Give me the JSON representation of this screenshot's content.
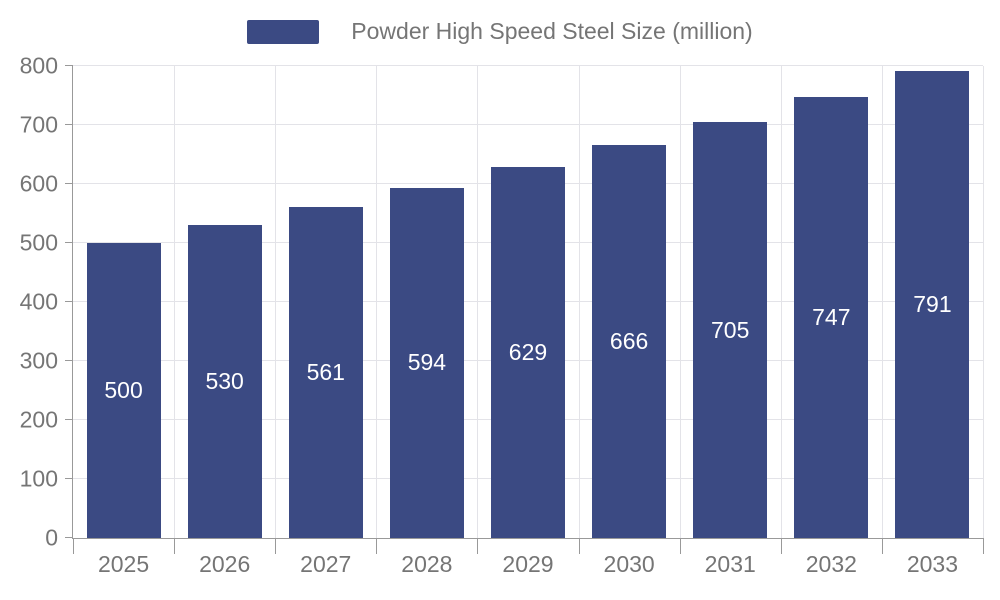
{
  "legend": {
    "label": "Powder High Speed Steel Size (million)"
  },
  "colors": {
    "bar": "#3b4a83",
    "grid": "#e3e3e8",
    "axis_line": "#999999",
    "tick_text": "#757575",
    "value_label": "#ffffff",
    "background": "#ffffff"
  },
  "chart_data": {
    "type": "bar",
    "title": "",
    "xlabel": "",
    "ylabel": "",
    "categories": [
      "2025",
      "2026",
      "2027",
      "2028",
      "2029",
      "2030",
      "2031",
      "2032",
      "2033"
    ],
    "series": [
      {
        "name": "Powder High Speed Steel Size (million)",
        "values": [
          500,
          530,
          561,
          594,
          629,
          666,
          705,
          747,
          791
        ]
      }
    ],
    "ylim": [
      0,
      800
    ],
    "yticks": [
      0,
      100,
      200,
      300,
      400,
      500,
      600,
      700,
      800
    ],
    "grid": true,
    "legend_position": "top",
    "value_labels": "inside-center"
  }
}
